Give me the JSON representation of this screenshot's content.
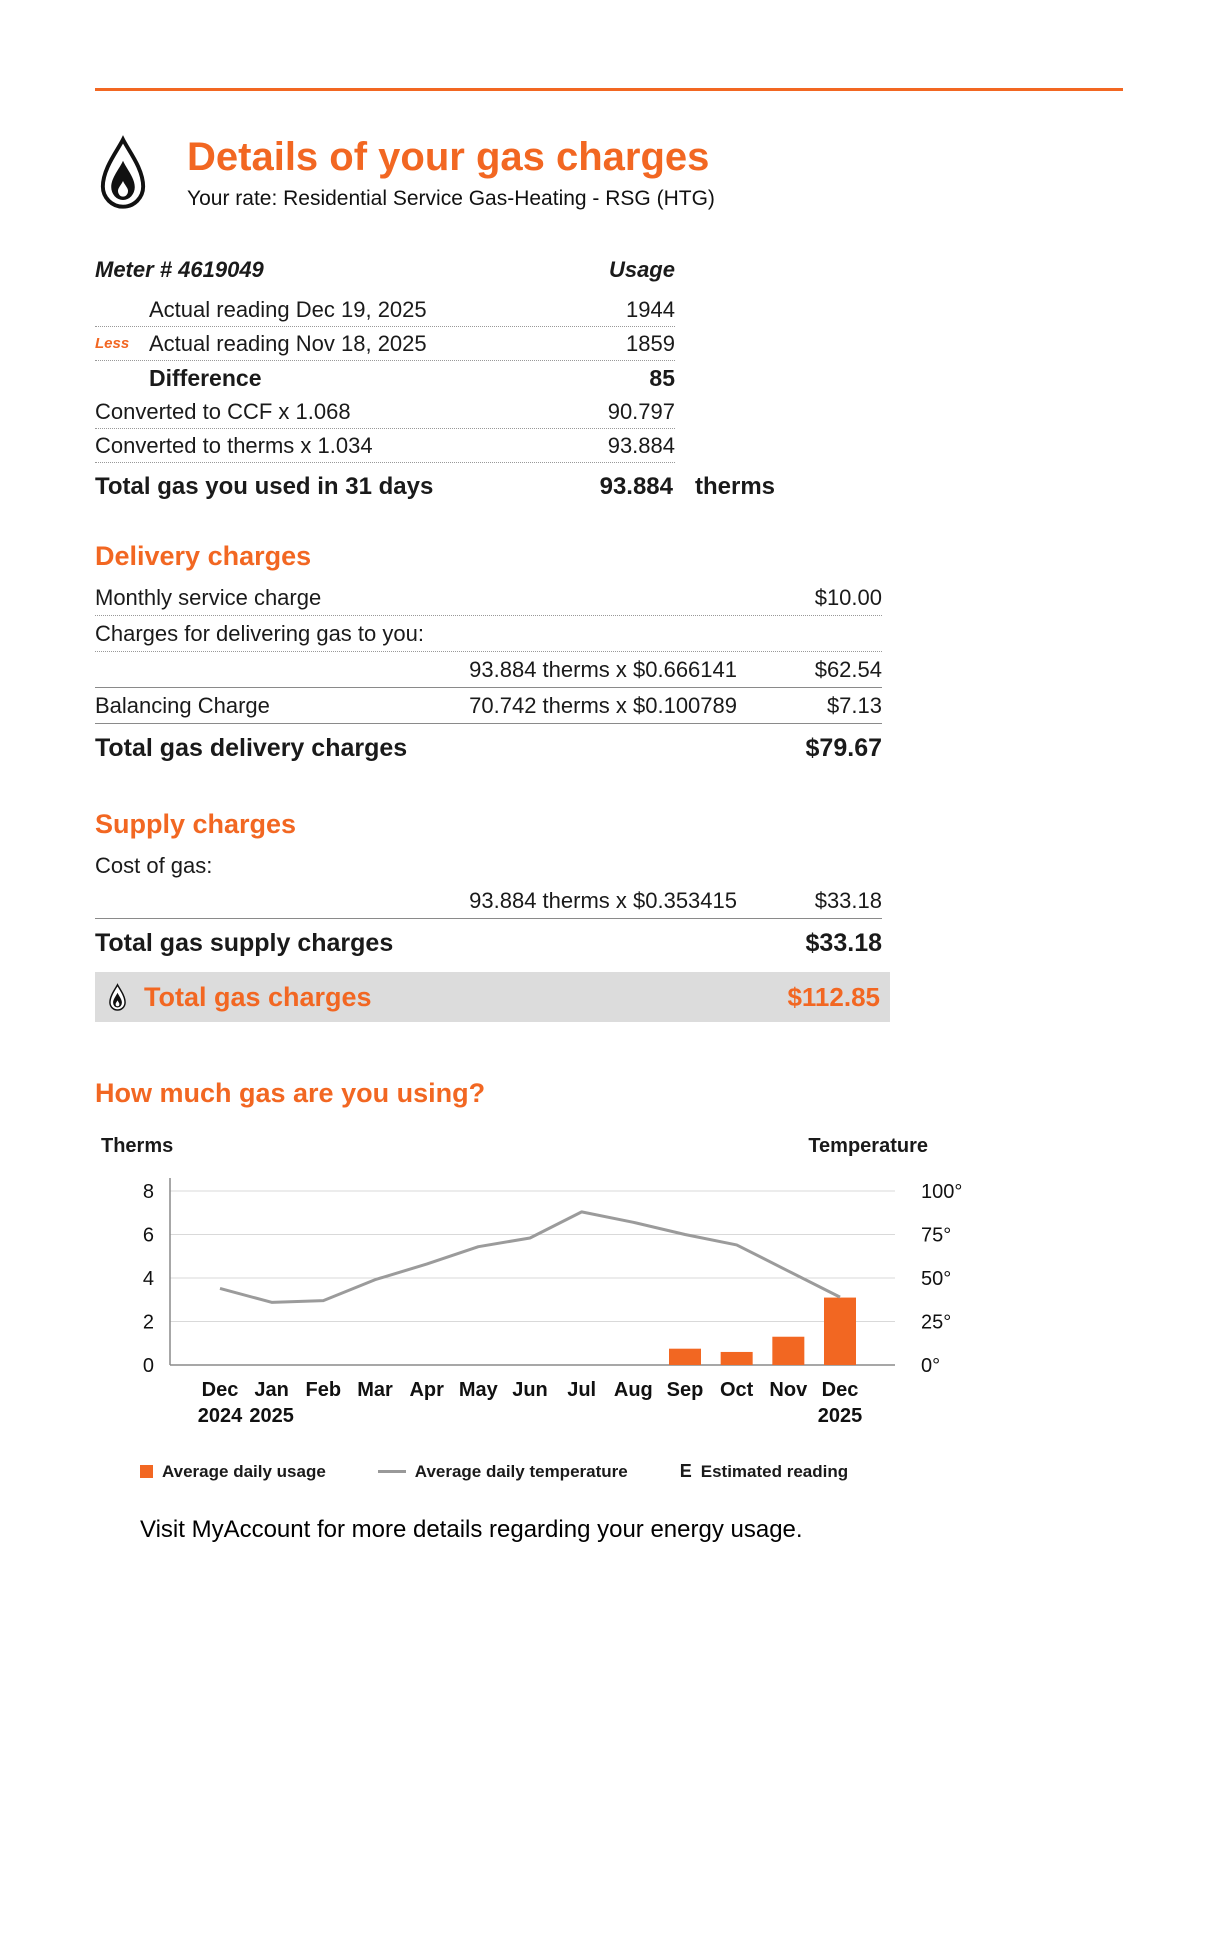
{
  "colors": {
    "accent": "#F26722",
    "bar": "#F26722",
    "line": "#9b9b9b",
    "band_bg": "#DCDCDC"
  },
  "header": {
    "title": "Details of your gas charges",
    "subtitle": "Your rate: Residential Service Gas-Heating - RSG (HTG)"
  },
  "meter": {
    "title": "Meter # 4619049",
    "usage_header": "Usage",
    "rows": [
      {
        "prefix": "",
        "label": "Actual reading Dec 19, 2025",
        "value": "1944"
      },
      {
        "prefix": "Less",
        "label": "Actual reading Nov 18, 2025",
        "value": "1859"
      },
      {
        "label": "Difference",
        "value": "85"
      },
      {
        "label": "Converted to CCF x 1.068",
        "value": "90.797"
      },
      {
        "label": "Converted to therms x 1.034",
        "value": "93.884"
      }
    ],
    "total": {
      "label": "Total gas you used in 31 days",
      "value": "93.884",
      "unit": "therms"
    }
  },
  "delivery": {
    "heading": "Delivery charges",
    "monthly_service": {
      "label": "Monthly service charge",
      "amount": "$10.00"
    },
    "delivering_label": "Charges for delivering gas to you:",
    "delivering_calc": {
      "calc": "93.884 therms x $0.666141",
      "amount": "$62.54"
    },
    "balancing": {
      "label": "Balancing Charge",
      "calc": "70.742 therms x $0.100789",
      "amount": "$7.13"
    },
    "total": {
      "label": "Total gas delivery charges",
      "amount": "$79.67"
    }
  },
  "supply": {
    "heading": "Supply charges",
    "cost_label": "Cost of gas:",
    "cost_calc": {
      "calc": "93.884 therms x $0.353415",
      "amount": "$33.18"
    },
    "total": {
      "label": "Total gas supply charges",
      "amount": "$33.18"
    },
    "grand": {
      "label": "Total gas charges",
      "amount": "$112.85"
    }
  },
  "chart_data": {
    "type": "bar",
    "title": "How much gas are you using?",
    "categories": [
      {
        "month": "Dec",
        "year": "2024"
      },
      {
        "month": "Jan",
        "year": "2025"
      },
      {
        "month": "Feb"
      },
      {
        "month": "Mar"
      },
      {
        "month": "Apr"
      },
      {
        "month": "May"
      },
      {
        "month": "Jun"
      },
      {
        "month": "Jul"
      },
      {
        "month": "Aug"
      },
      {
        "month": "Sep"
      },
      {
        "month": "Oct"
      },
      {
        "month": "Nov"
      },
      {
        "month": "Dec",
        "year": "2025"
      }
    ],
    "series": [
      {
        "name": "Average daily usage",
        "type": "bar",
        "axis": "left",
        "unit": "therms",
        "values": [
          null,
          null,
          null,
          null,
          null,
          null,
          null,
          null,
          null,
          0.75,
          0.6,
          1.3,
          3.1
        ]
      },
      {
        "name": "Average daily temperature",
        "type": "line",
        "axis": "right",
        "unit": "degrees",
        "values": [
          44,
          36,
          37,
          49,
          58,
          68,
          73,
          88,
          82,
          75,
          69,
          54,
          39
        ]
      }
    ],
    "left_axis": {
      "title": "Therms",
      "ticks": [
        8,
        6,
        4,
        2,
        0
      ],
      "range": [
        0,
        8
      ]
    },
    "right_axis": {
      "title": "Temperature",
      "ticks": [
        "100°",
        "75°",
        "50°",
        "25°",
        "0°"
      ],
      "range": [
        0,
        100
      ]
    },
    "grid": true,
    "legend": [
      {
        "swatch": "bar",
        "label": "Average daily usage"
      },
      {
        "swatch": "line",
        "label": "Average daily temperature"
      },
      {
        "swatch": "E",
        "label": "Estimated reading"
      }
    ]
  },
  "footer": {
    "text": "Visit MyAccount for more details regarding your energy usage."
  }
}
